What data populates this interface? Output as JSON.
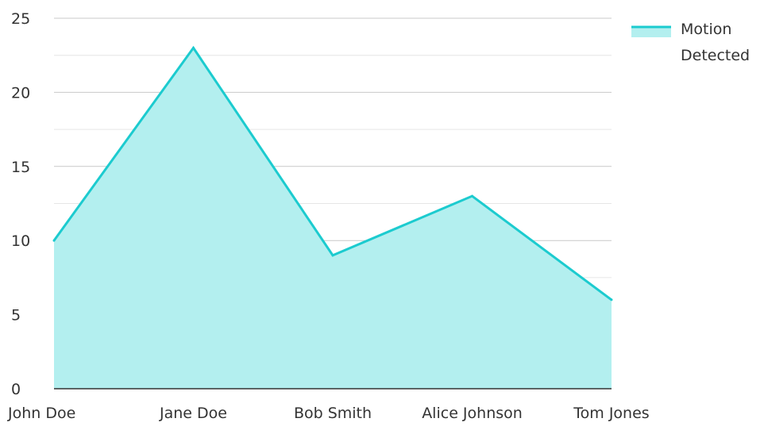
{
  "chart_data": {
    "type": "area",
    "categories": [
      "John Doe",
      "Jane Doe",
      "Bob Smith",
      "Alice Johnson",
      "Tom Jones"
    ],
    "series": [
      {
        "name": "Motion Detected",
        "values": [
          10,
          23,
          9,
          13,
          6
        ],
        "color": "#1ccbcf",
        "fill": "#b3efef"
      }
    ],
    "ylim": [
      0,
      25
    ],
    "yticks": [
      "0",
      "5",
      "10",
      "15",
      "20",
      "25"
    ],
    "grid": true,
    "legend": {
      "position": "top-right",
      "label_lines": [
        "Motion",
        "Detected"
      ]
    }
  }
}
